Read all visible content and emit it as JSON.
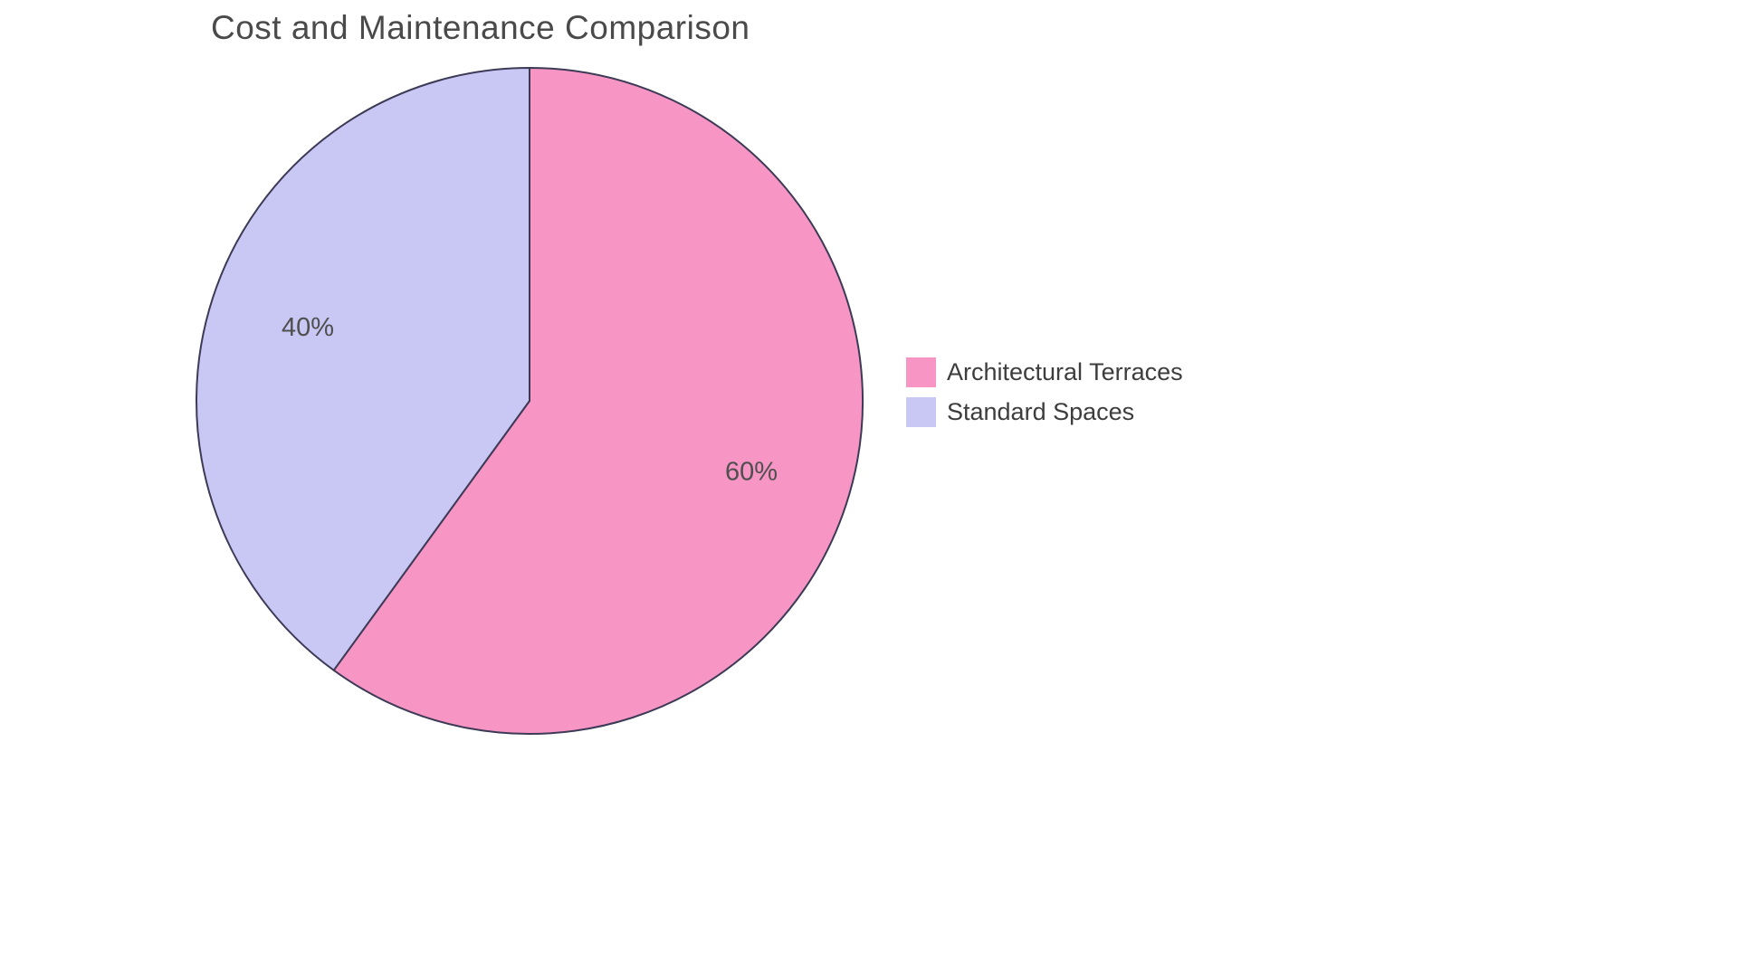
{
  "chart_data": {
    "type": "pie",
    "title": "Cost and Maintenance Comparison",
    "slices": [
      {
        "label": "Architectural Terraces",
        "value": 60,
        "display": "60%",
        "color": "#F795C5"
      },
      {
        "label": "Standard Spaces",
        "value": 40,
        "display": "40%",
        "color": "#C9C7F4"
      }
    ],
    "start_angle_deg": -90,
    "direction": "clockwise",
    "stroke_color": "#3D3A56",
    "stroke_width": 2,
    "label_color": "#4F4F4F",
    "legend_position": "right",
    "background_color": "#FFFFFF"
  }
}
